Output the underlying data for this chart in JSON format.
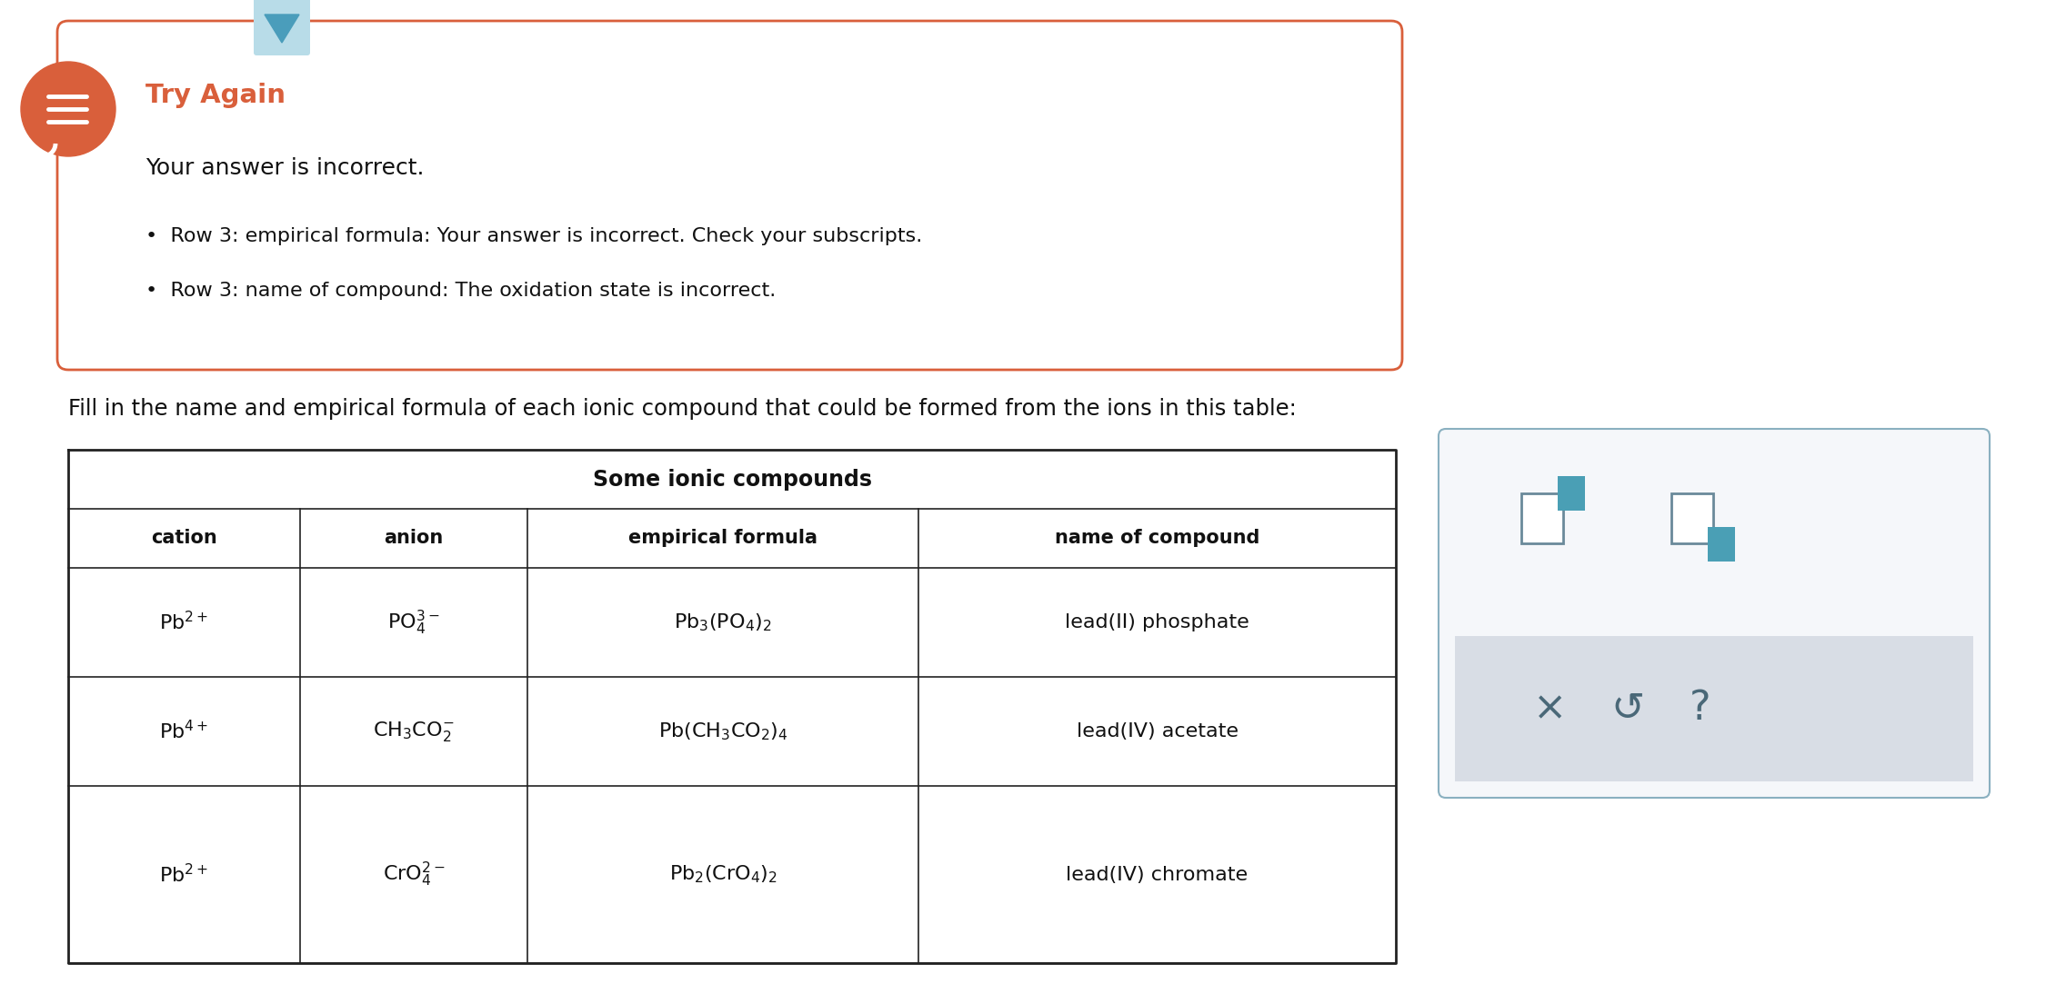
{
  "bg_color": "#ffffff",
  "try_again_color": "#d95f3b",
  "icon_color": "#d95f3b",
  "teal_color": "#5ab5c8",
  "try_again_text": "Try Again",
  "incorrect_text": "Your answer is incorrect.",
  "bullet1": "Row 3: empirical formula: Your answer is incorrect. Check your subscripts.",
  "bullet2": "Row 3: name of compound: The oxidation state is incorrect.",
  "fill_in_text": "Fill in the name and empirical formula of each ionic compound that could be formed from the ions in this table:",
  "table_title": "Some ionic compounds",
  "col_headers": [
    "cation",
    "anion",
    "empirical formula",
    "name of compound"
  ],
  "row1_cation": "Pb$^{2+}$",
  "row1_anion": "PO$_4^{3-}$",
  "row1_formula": "Pb$_3$(PO$_4$)$_2$",
  "row1_name": "lead(II) phosphate",
  "row2_cation": "Pb$^{4+}$",
  "row2_anion": "CH$_3$CO$_2^{-}$",
  "row2_formula": "Pb(CH$_3$CO$_2$)$_4$",
  "row2_name": "lead(IV) acetate",
  "row3_cation": "Pb$^{2+}$",
  "row3_anion": "CrO$_4^{2-}$",
  "row3_formula": "Pb$_2$(CrO$_4$)$_2$",
  "row3_name": "lead(IV) chromate",
  "table_border_color": "#222222",
  "panel_border_color": "#8ab0c0",
  "panel_bg": "#f5f7fa",
  "panel_stripe_bg": "#d8dde5",
  "panel_icon_teal": "#4a9fb5",
  "panel_icon_gray": "#6a7f8a",
  "fig_w": 22.5,
  "fig_h": 10.94,
  "dpi": 100
}
